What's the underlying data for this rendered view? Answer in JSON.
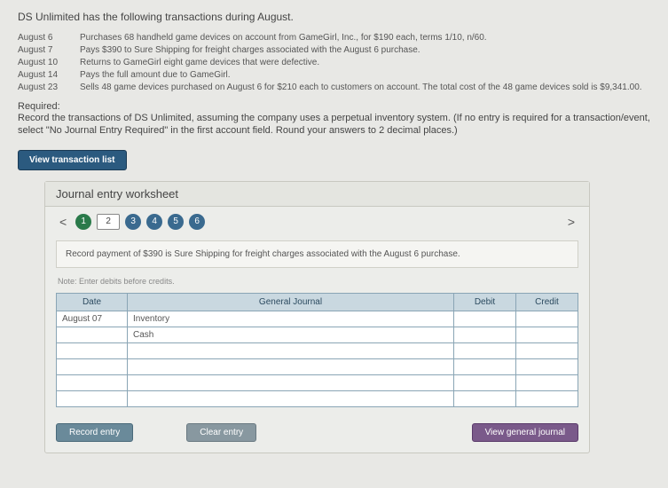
{
  "title": "DS Unlimited has the following transactions during August.",
  "transactions": [
    {
      "date": "August 6",
      "desc": "Purchases 68 handheld game devices on account from GameGirl, Inc., for $190 each, terms 1/10, n/60."
    },
    {
      "date": "August 7",
      "desc": "Pays $390 to Sure Shipping for freight charges associated with the August 6 purchase."
    },
    {
      "date": "August 10",
      "desc": "Returns to GameGirl eight game devices that were defective."
    },
    {
      "date": "August 14",
      "desc": "Pays the full amount due to GameGirl."
    },
    {
      "date": "August 23",
      "desc": "Sells 48 game devices purchased on August 6 for $210 each to customers on account. The total cost of the 48 game devices sold is $9,341.00."
    }
  ],
  "required_label": "Required:",
  "required_text": "Record the transactions of DS Unlimited, assuming the company uses a perpetual inventory system. (If no entry is required for a transaction/event, select \"No Journal Entry Required\" in the first account field. Round your answers to 2 decimal places.)",
  "view_btn": "View transaction list",
  "worksheet": {
    "header": "Journal entry worksheet",
    "pager": {
      "prev": "<",
      "next": ">",
      "steps": [
        "1",
        "2",
        "3",
        "4",
        "5",
        "6"
      ],
      "current": 2
    },
    "instruction": "Record payment of $390 is Sure Shipping for freight charges associated with the August 6 purchase.",
    "note": "Note: Enter debits before credits.",
    "columns": {
      "date": "Date",
      "gj": "General Journal",
      "debit": "Debit",
      "credit": "Credit"
    },
    "rows": [
      {
        "date": "August 07",
        "gj": "Inventory",
        "debit": "",
        "credit": ""
      },
      {
        "date": "",
        "gj": "Cash",
        "debit": "",
        "credit": ""
      },
      {
        "date": "",
        "gj": "",
        "debit": "",
        "credit": ""
      },
      {
        "date": "",
        "gj": "",
        "debit": "",
        "credit": ""
      },
      {
        "date": "",
        "gj": "",
        "debit": "",
        "credit": ""
      },
      {
        "date": "",
        "gj": "",
        "debit": "",
        "credit": ""
      }
    ],
    "footer": {
      "record": "Record entry",
      "clear": "Clear entry",
      "viewgj": "View general journal"
    }
  },
  "colors": {
    "page_bg": "#e8e8e5",
    "panel_bg": "#ecedea",
    "header_bg": "#e4e5e0",
    "th_bg": "#c9d8e0",
    "btn_primary": "#2b5a7f"
  }
}
